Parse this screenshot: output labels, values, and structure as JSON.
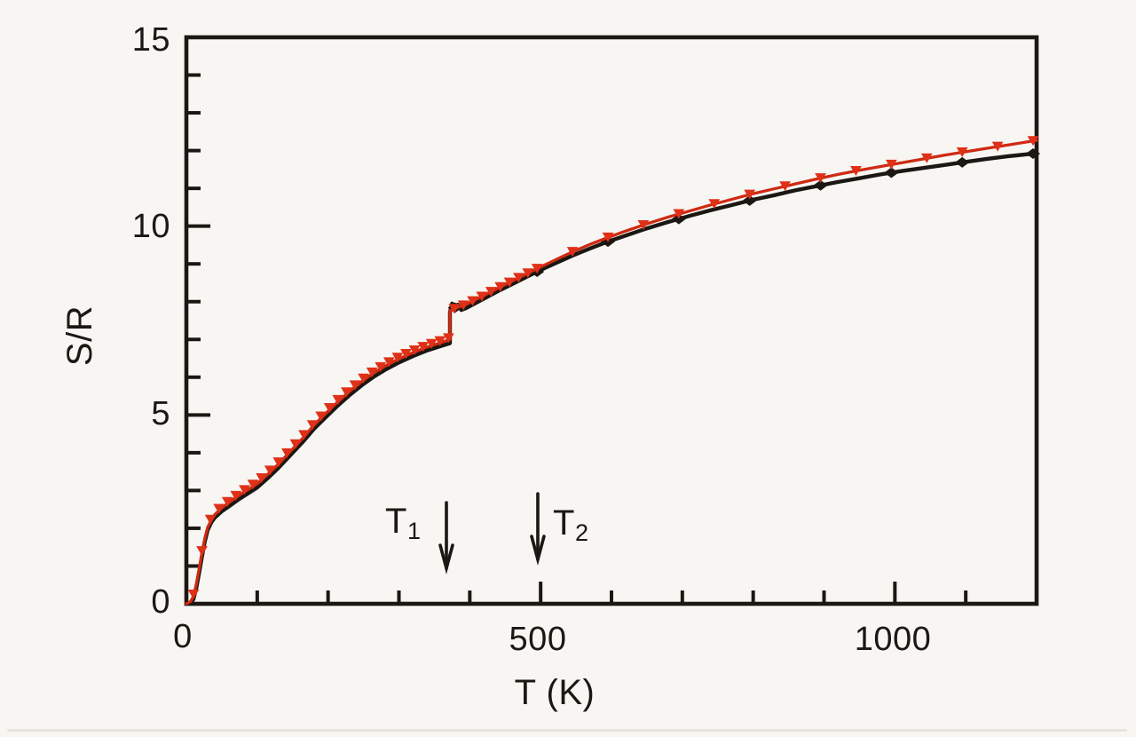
{
  "figure": {
    "background": "#f8f6f3",
    "bottom_edge_color": "#e7e4de"
  },
  "chart_data": {
    "type": "line",
    "title": "",
    "xlabel": "T (K)",
    "ylabel": "S/R",
    "xlim": [
      0,
      1200
    ],
    "ylim": [
      0,
      15
    ],
    "grid": false,
    "legend": "none",
    "axis_color": "#1b1713",
    "x_major_ticks": [
      0,
      500,
      1000
    ],
    "x_minor_tick_step": 100,
    "y_major_ticks": [
      0,
      5,
      10,
      15
    ],
    "y_minor_tick_step": 1,
    "x_tick_labels": [
      "0",
      "500",
      "1000"
    ],
    "y_tick_labels": [
      "15",
      "10",
      "5",
      "0"
    ],
    "annotations": [
      {
        "name": "T1",
        "base": "T",
        "sub": "1",
        "T": 367,
        "arrow": "down",
        "label_side": "left",
        "arrow_dy": 0
      },
      {
        "name": "T2",
        "base": "T",
        "sub": "2",
        "T": 496,
        "arrow": "down",
        "label_side": "right",
        "arrow_dy": -10
      }
    ],
    "transition": {
      "T": 372,
      "jump_from_SR": 6.9,
      "jump_to_SR": 7.74
    },
    "series": [
      {
        "name": "black-curve",
        "color": "#1b1713",
        "line_width": 4.4,
        "marker": {
          "shape": "diamond",
          "size": 14,
          "color": "#1b1713",
          "T_values": [
            379,
            495,
            595,
            695,
            795,
            895,
            995,
            1095,
            1195
          ]
        },
        "points": [
          [
            0,
            0
          ],
          [
            6,
            0.03
          ],
          [
            10,
            0.12
          ],
          [
            14,
            0.42
          ],
          [
            18,
            0.82
          ],
          [
            22,
            1.25
          ],
          [
            26,
            1.65
          ],
          [
            30,
            1.95
          ],
          [
            35,
            2.15
          ],
          [
            40,
            2.28
          ],
          [
            50,
            2.45
          ],
          [
            60,
            2.58
          ],
          [
            75,
            2.78
          ],
          [
            90,
            2.96
          ],
          [
            100,
            3.08
          ],
          [
            115,
            3.33
          ],
          [
            130,
            3.6
          ],
          [
            150,
            4.0
          ],
          [
            165,
            4.3
          ],
          [
            180,
            4.63
          ],
          [
            200,
            5.0
          ],
          [
            215,
            5.27
          ],
          [
            230,
            5.52
          ],
          [
            250,
            5.82
          ],
          [
            265,
            6.02
          ],
          [
            280,
            6.19
          ],
          [
            300,
            6.39
          ],
          [
            320,
            6.56
          ],
          [
            340,
            6.71
          ],
          [
            360,
            6.83
          ],
          [
            372,
            6.9
          ],
          [
            372,
            7.72
          ],
          [
            375,
            7.95
          ],
          [
            379,
            7.84
          ],
          [
            383,
            7.92
          ],
          [
            388,
            7.78
          ],
          [
            395,
            7.83
          ],
          [
            410,
            7.98
          ],
          [
            425,
            8.13
          ],
          [
            440,
            8.28
          ],
          [
            455,
            8.42
          ],
          [
            470,
            8.56
          ],
          [
            485,
            8.7
          ],
          [
            500,
            8.84
          ],
          [
            520,
            9.01
          ],
          [
            545,
            9.22
          ],
          [
            570,
            9.41
          ],
          [
            595,
            9.59
          ],
          [
            620,
            9.75
          ],
          [
            650,
            9.94
          ],
          [
            680,
            10.11
          ],
          [
            710,
            10.27
          ],
          [
            740,
            10.42
          ],
          [
            770,
            10.56
          ],
          [
            800,
            10.7
          ],
          [
            830,
            10.82
          ],
          [
            860,
            10.95
          ],
          [
            890,
            11.06
          ],
          [
            920,
            11.17
          ],
          [
            950,
            11.27
          ],
          [
            980,
            11.37
          ],
          [
            1010,
            11.46
          ],
          [
            1040,
            11.54
          ],
          [
            1070,
            11.62
          ],
          [
            1100,
            11.7
          ],
          [
            1130,
            11.78
          ],
          [
            1160,
            11.85
          ],
          [
            1200,
            11.93
          ]
        ]
      },
      {
        "name": "red-curve",
        "color": "#cf2a12",
        "line_width": 3.3,
        "marker": {
          "shape": "triangle-down",
          "size": 11,
          "color": "#df3018",
          "T_ranges": [
            [
              10,
              370,
              12
            ],
            [
              378,
              496,
              13
            ],
            [
              545,
              1195,
              50
            ]
          ]
        },
        "points": [
          [
            0,
            0
          ],
          [
            6,
            0.06
          ],
          [
            10,
            0.2
          ],
          [
            14,
            0.52
          ],
          [
            18,
            0.93
          ],
          [
            22,
            1.35
          ],
          [
            26,
            1.73
          ],
          [
            30,
            2.02
          ],
          [
            35,
            2.22
          ],
          [
            40,
            2.36
          ],
          [
            50,
            2.54
          ],
          [
            60,
            2.68
          ],
          [
            75,
            2.88
          ],
          [
            90,
            3.06
          ],
          [
            100,
            3.18
          ],
          [
            115,
            3.43
          ],
          [
            130,
            3.7
          ],
          [
            150,
            4.1
          ],
          [
            165,
            4.4
          ],
          [
            180,
            4.73
          ],
          [
            200,
            5.1
          ],
          [
            215,
            5.37
          ],
          [
            230,
            5.62
          ],
          [
            250,
            5.92
          ],
          [
            265,
            6.12
          ],
          [
            280,
            6.29
          ],
          [
            300,
            6.49
          ],
          [
            320,
            6.65
          ],
          [
            340,
            6.8
          ],
          [
            360,
            6.92
          ],
          [
            372,
            7.0
          ],
          [
            372,
            7.76
          ],
          [
            380,
            7.83
          ],
          [
            395,
            7.93
          ],
          [
            410,
            8.07
          ],
          [
            425,
            8.21
          ],
          [
            440,
            8.36
          ],
          [
            455,
            8.5
          ],
          [
            470,
            8.64
          ],
          [
            485,
            8.78
          ],
          [
            500,
            8.92
          ],
          [
            520,
            9.1
          ],
          [
            545,
            9.32
          ],
          [
            570,
            9.52
          ],
          [
            595,
            9.7
          ],
          [
            620,
            9.87
          ],
          [
            650,
            10.06
          ],
          [
            680,
            10.24
          ],
          [
            710,
            10.4
          ],
          [
            740,
            10.56
          ],
          [
            770,
            10.71
          ],
          [
            800,
            10.86
          ],
          [
            830,
            10.99
          ],
          [
            860,
            11.12
          ],
          [
            890,
            11.25
          ],
          [
            920,
            11.37
          ],
          [
            950,
            11.48
          ],
          [
            980,
            11.58
          ],
          [
            1010,
            11.68
          ],
          [
            1040,
            11.78
          ],
          [
            1070,
            11.88
          ],
          [
            1100,
            11.97
          ],
          [
            1130,
            12.06
          ],
          [
            1160,
            12.15
          ],
          [
            1200,
            12.27
          ]
        ]
      }
    ]
  }
}
